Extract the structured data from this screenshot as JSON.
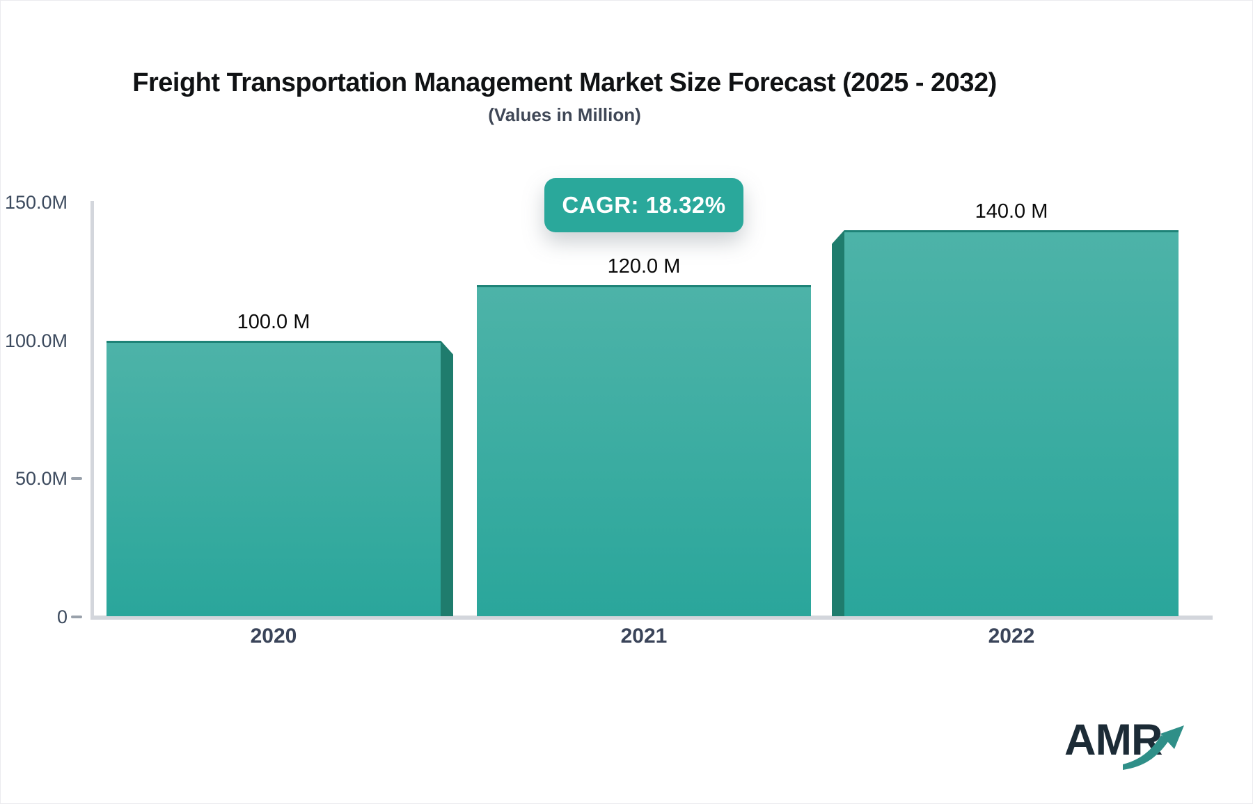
{
  "header": {
    "title": "Freight Transportation Management Market Size Forecast (2025 - 2032)",
    "subtitle": "(Values in Million)"
  },
  "cagr_badge": "CAGR: 18.32%",
  "chart_data": {
    "type": "bar",
    "title": "Freight Transportation Management Market Size Forecast (2025 - 2032)",
    "subtitle": "(Values in Million)",
    "unit": "Million",
    "categories": [
      "2020",
      "2021",
      "2022"
    ],
    "values": [
      100,
      120,
      140
    ],
    "data_labels": [
      "100.0 M",
      "120.0 M",
      "140.0 M"
    ],
    "cagr": "18.32%",
    "ylim": [
      0,
      150
    ],
    "y_ticks": [
      {
        "label": "150.0M",
        "value": 150,
        "tick": false
      },
      {
        "label": "100.0M",
        "value": 100,
        "tick": false
      },
      {
        "label": "50.0M",
        "value": 50,
        "tick": true
      },
      {
        "label": "0",
        "value": 0,
        "tick": true
      }
    ],
    "grid": false,
    "legend": "none",
    "bar_style": "3d-extruded",
    "colors": {
      "bar_top": "#4db3a8",
      "bar_bottom": "#2aa69b",
      "bar_edge": "#1e8377",
      "bar_side": "#1f7c6d",
      "badge_bg": "#2aa89b",
      "axis_line": "#d3d6dc",
      "tick_text": "#3c4a5e",
      "value_text": "#0a0a0a"
    }
  },
  "logo": {
    "text": "AMR",
    "icon": "trending-up-arrow-icon",
    "text_color": "#1c2b36",
    "arrow_color": "#2f8f88"
  }
}
